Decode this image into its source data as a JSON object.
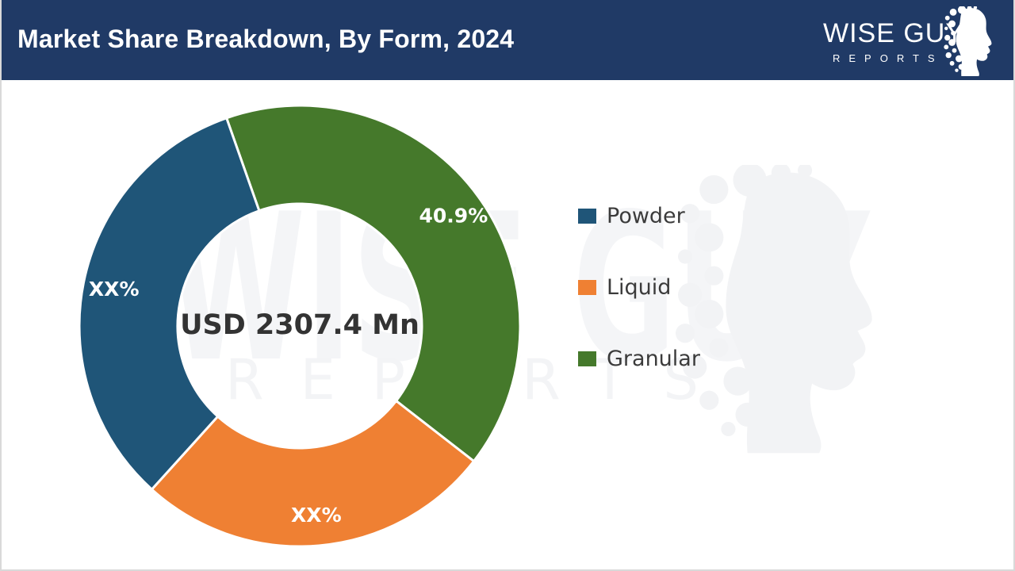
{
  "header": {
    "title": "Market Share Breakdown, By Form, 2024",
    "brand": {
      "line1": "WISE GUY",
      "line2": "REPORTS"
    }
  },
  "chart_data": {
    "type": "donut",
    "title": "Market Share Breakdown, By Form, 2024",
    "center_label": "USD 2307.4 Mn",
    "start_angle_deg": -19.4,
    "segments": [
      {
        "name": "Granular",
        "value_pct": 40.9,
        "display_label": "40.9%",
        "color": "#45792B"
      },
      {
        "name": "Liquid",
        "value_pct": 26.2,
        "display_label": "XX%",
        "color": "#EF8033"
      },
      {
        "name": "Powder",
        "value_pct": 32.9,
        "display_label": "XX%",
        "color": "#1F5578"
      }
    ],
    "legend_position": "right",
    "grid": false
  },
  "legend": {
    "items": [
      {
        "label": "Powder",
        "color": "#1F5578"
      },
      {
        "label": "Liquid",
        "color": "#EF8033"
      },
      {
        "label": "Granular",
        "color": "#45792B"
      }
    ]
  },
  "watermark": {
    "line1": "WISE GUY",
    "line2": "REPORTS"
  },
  "colors": {
    "header_bg": "#203A66",
    "powder": "#1F5578",
    "liquid": "#EF8033",
    "granular": "#45792B",
    "center_text": "#333333",
    "watermark": "#F4F5F7",
    "border": "#D9D9D9"
  }
}
